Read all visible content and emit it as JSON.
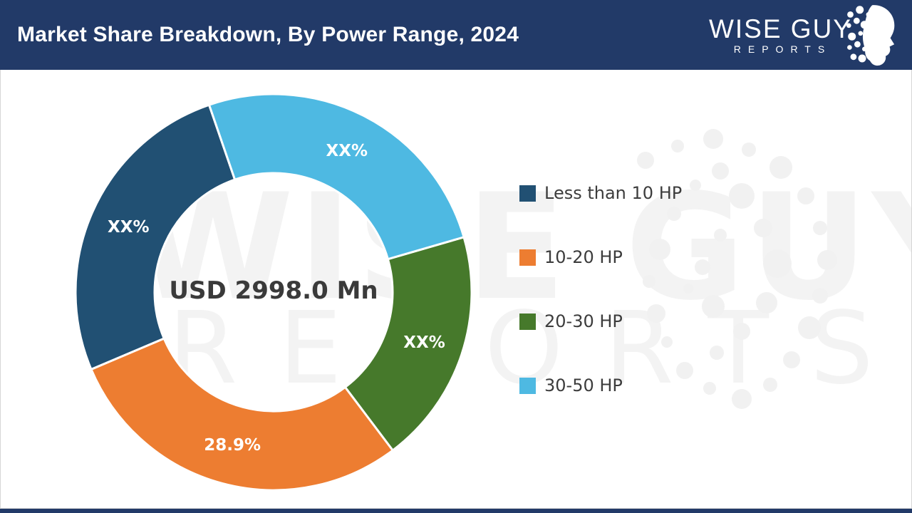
{
  "header": {
    "title": "Market Share Breakdown, By Power Range, 2024",
    "bg_color": "#223a68",
    "logo": {
      "line1": "WISE GUY",
      "line2": "REPORTS"
    }
  },
  "watermark": {
    "line1": "WISE GUY",
    "line2": "REPORTS"
  },
  "chart_data": {
    "type": "pie",
    "donut": true,
    "title": "Market Share Breakdown, By Power Range, 2024",
    "center_label": "USD 2998.0 Mn",
    "legend_position": "right",
    "start_angle_deg": 341,
    "direction": "counterclockwise",
    "outer_radius_px": 278,
    "inner_radius_px": 167,
    "gap_color": "#ffffff",
    "segments": [
      {
        "label": "Less than 10 HP",
        "displayed_value": "XX%",
        "value_pct_est": 26.1,
        "color": "#215073"
      },
      {
        "label": "10-20 HP",
        "displayed_value": "28.9%",
        "value_pct_est": 28.9,
        "color": "#ed7d31"
      },
      {
        "label": "20-30 HP",
        "displayed_value": "XX%",
        "value_pct_est": 19.2,
        "color": "#46792b"
      },
      {
        "label": "30-50 HP",
        "displayed_value": "XX%",
        "value_pct_est": 25.8,
        "color": "#4eb9e2"
      }
    ]
  }
}
